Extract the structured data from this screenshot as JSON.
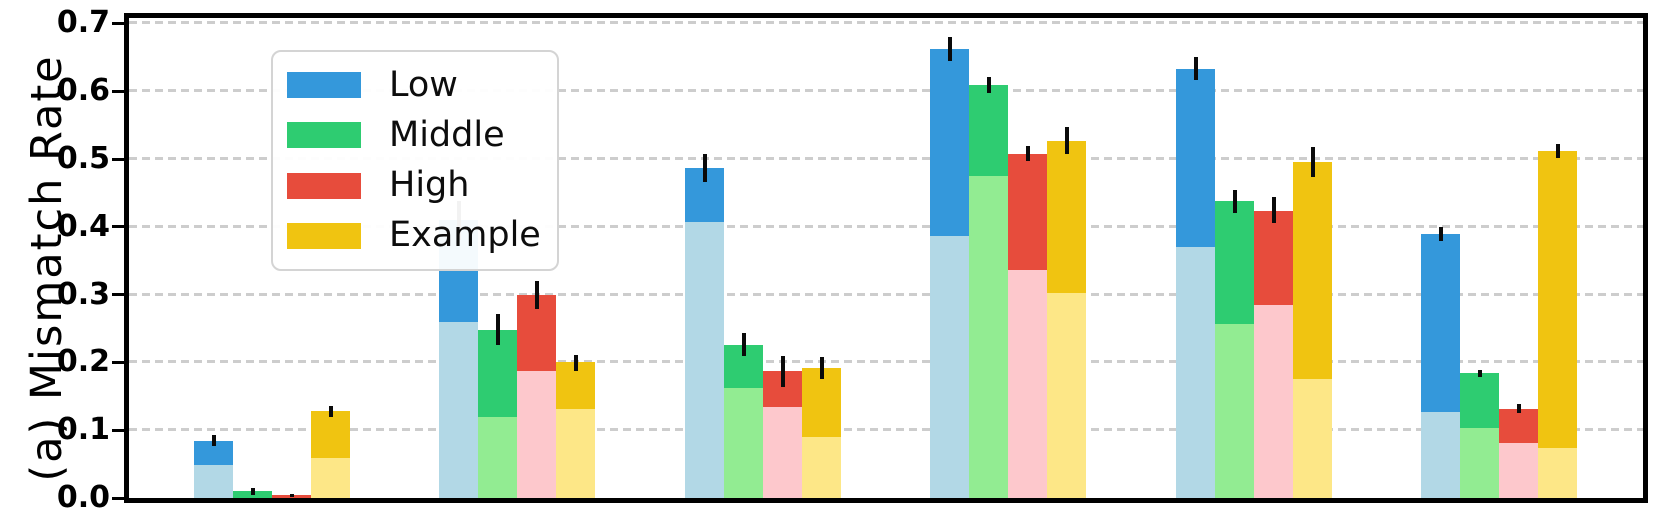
{
  "figure": {
    "background_color": "#ffffff",
    "spine_color": "#000000",
    "gridline_color": "#cdcdcd",
    "error_bar_color": "#0a0a0a"
  },
  "y_axis": {
    "label": "(a) Mismatch Rate",
    "tick_labels": [
      "0.0",
      "0.1",
      "0.2",
      "0.3",
      "0.4",
      "0.5",
      "0.6",
      "0.7"
    ],
    "tick_values": [
      0.0,
      0.1,
      0.2,
      0.3,
      0.4,
      0.5,
      0.6,
      0.7
    ]
  },
  "chart_data": {
    "type": "bar",
    "title": "",
    "xlabel": "",
    "ylabel": "(a) Mismatch Rate",
    "ylim": [
      0.0,
      0.71
    ],
    "grid": "horizontal dashed",
    "legend_position": "upper left",
    "bar_style": "each bar = light-shade base segment + solid top segment, with vertical error bar at total",
    "categories": [
      "",
      "",
      "",
      "",
      "",
      ""
    ],
    "series": [
      {
        "name": "Low",
        "color": "#3498db",
        "light_color": "#b2d8e6",
        "totals": [
          0.084,
          0.41,
          0.487,
          0.662,
          0.633,
          0.389
        ],
        "light_base": [
          0.048,
          0.259,
          0.407,
          0.386,
          0.37,
          0.127
        ],
        "errors": [
          0.008,
          0.029,
          0.021,
          0.018,
          0.017,
          0.01
        ]
      },
      {
        "name": "Middle",
        "color": "#2ecc71",
        "light_color": "#92ec92",
        "totals": [
          0.01,
          0.248,
          0.226,
          0.609,
          0.438,
          0.184
        ],
        "light_base": [
          0.0,
          0.12,
          0.162,
          0.475,
          0.257,
          0.103
        ],
        "errors": [
          0.005,
          0.023,
          0.017,
          0.012,
          0.017,
          0.005
        ]
      },
      {
        "name": "High",
        "color": "#e74c3c",
        "light_color": "#fdc8cc",
        "totals": [
          0.004,
          0.3,
          0.187,
          0.508,
          0.424,
          0.132
        ],
        "light_base": [
          0.0,
          0.188,
          0.134,
          0.337,
          0.284,
          0.081
        ],
        "errors": [
          0.002,
          0.021,
          0.023,
          0.011,
          0.019,
          0.007
        ]
      },
      {
        "name": "Example",
        "color": "#f0c411",
        "light_color": "#fde787",
        "totals": [
          0.128,
          0.2,
          0.192,
          0.527,
          0.495,
          0.512
        ],
        "light_base": [
          0.059,
          0.132,
          0.09,
          0.303,
          0.175,
          0.074
        ],
        "errors": [
          0.008,
          0.012,
          0.016,
          0.02,
          0.022,
          0.01
        ]
      }
    ]
  }
}
